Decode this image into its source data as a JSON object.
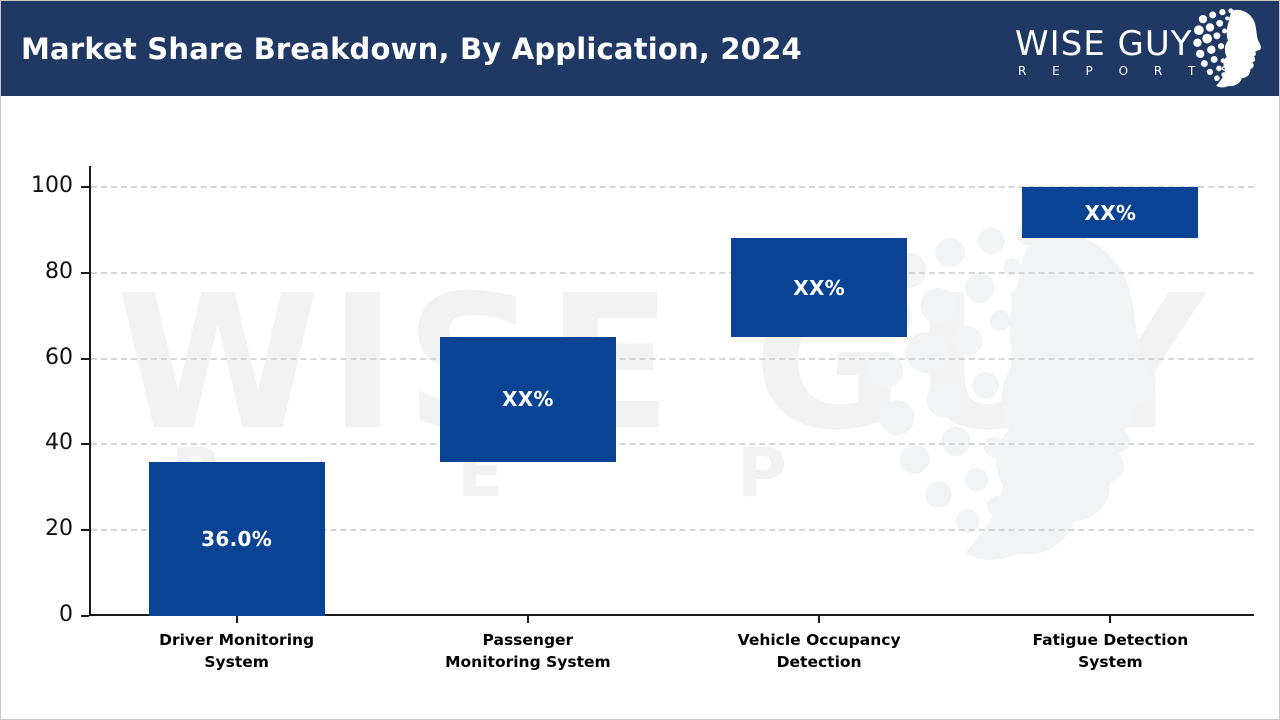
{
  "header": {
    "title": "Market Share Breakdown, By Application, 2024",
    "logo": {
      "wordmark": "WISE GUY",
      "sub": "R E P O R T S",
      "head_icon": "dotted-head-profile"
    }
  },
  "watermark": {
    "wordmark": "WISE GUY",
    "sub": "R E P O R T S"
  },
  "colors": {
    "header_bg": "#1f3864",
    "bar": "#0b4394",
    "axis": "#1a1a1a",
    "grid": "#d5d5d5",
    "watermark": "#f2f2f2",
    "page_bg": "#ffffff"
  },
  "chart_data": {
    "type": "bar",
    "variant": "floating-waterfall",
    "title": "Market Share Breakdown, By Application, 2024",
    "xlabel": "",
    "ylabel": "",
    "ylim": [
      0,
      100
    ],
    "yticks": [
      0,
      20,
      40,
      60,
      80,
      100
    ],
    "grid": {
      "horizontal": true,
      "style": "dashed"
    },
    "legend": null,
    "bar_color": "#0b4394",
    "value_label_color": "#ffffff",
    "categories": [
      "Driver Monitoring System",
      "Passenger Monitoring System",
      "Vehicle Occupancy Detection",
      "Fatigue Detection System"
    ],
    "category_lines": [
      [
        "Driver Monitoring",
        "System"
      ],
      [
        "Passenger",
        "Monitoring System"
      ],
      [
        "Vehicle Occupancy",
        "Detection"
      ],
      [
        "Fatigue Detection",
        "System"
      ]
    ],
    "segments": [
      {
        "category": "Driver Monitoring System",
        "start": 0,
        "end": 36,
        "label": "36.0%"
      },
      {
        "category": "Passenger Monitoring System",
        "start": 36,
        "end": 65,
        "label": "XX%"
      },
      {
        "category": "Vehicle Occupancy Detection",
        "start": 65,
        "end": 88,
        "label": "XX%"
      },
      {
        "category": "Fatigue Detection System",
        "start": 88,
        "end": 100,
        "label": "XX%"
      }
    ]
  }
}
